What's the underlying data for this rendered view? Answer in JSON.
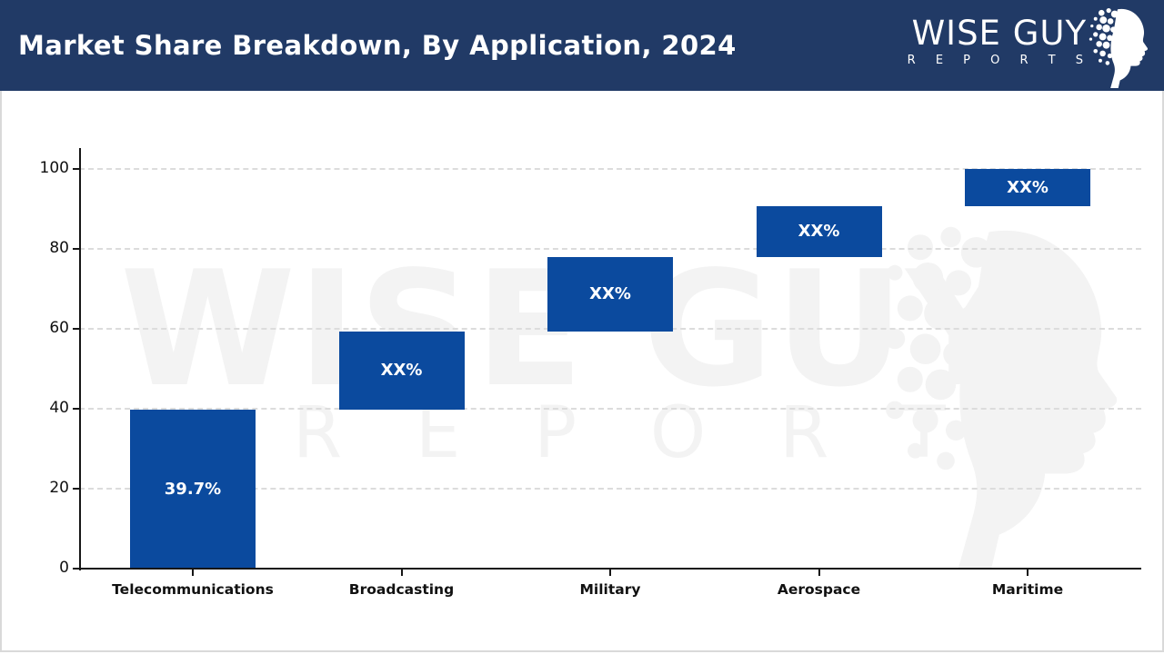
{
  "header": {
    "title": "Market Share Breakdown, By Application, 2024",
    "logo_line1": "WISE GUY",
    "logo_line2": "R E P O R T S"
  },
  "watermark": {
    "line1": "WISE GUY",
    "line2": "R E P O R T S"
  },
  "colors": {
    "header_bg": "#213A66",
    "bar_fill": "#0B4A9E",
    "bar_label": "#FFFFFF",
    "grid": "#DCDCDC",
    "axis": "#161616",
    "watermark": "#F3F3F3",
    "frame_border": "#D9D9D9"
  },
  "chart_data": {
    "type": "bar",
    "subtype": "waterfall",
    "title": "Market Share Breakdown, By Application, 2024",
    "categories": [
      "Telecommunications",
      "Broadcasting",
      "Military",
      "Aerospace",
      "Maritime"
    ],
    "segments": [
      {
        "category": "Telecommunications",
        "start": 0,
        "end": 39.7,
        "label": "39.7%"
      },
      {
        "category": "Broadcasting",
        "start": 39.7,
        "end": 59.3,
        "label": "XX%"
      },
      {
        "category": "Military",
        "start": 59.3,
        "end": 77.9,
        "label": "XX%"
      },
      {
        "category": "Aerospace",
        "start": 77.9,
        "end": 90.6,
        "label": "XX%"
      },
      {
        "category": "Maritime",
        "start": 90.6,
        "end": 100,
        "label": "XX%"
      }
    ],
    "yticks": [
      0,
      20,
      40,
      60,
      80,
      100
    ],
    "ylim": [
      0,
      105
    ],
    "units": "%",
    "grid": "horizontal-dashed",
    "legend": "none",
    "xlabel": "",
    "ylabel": ""
  }
}
